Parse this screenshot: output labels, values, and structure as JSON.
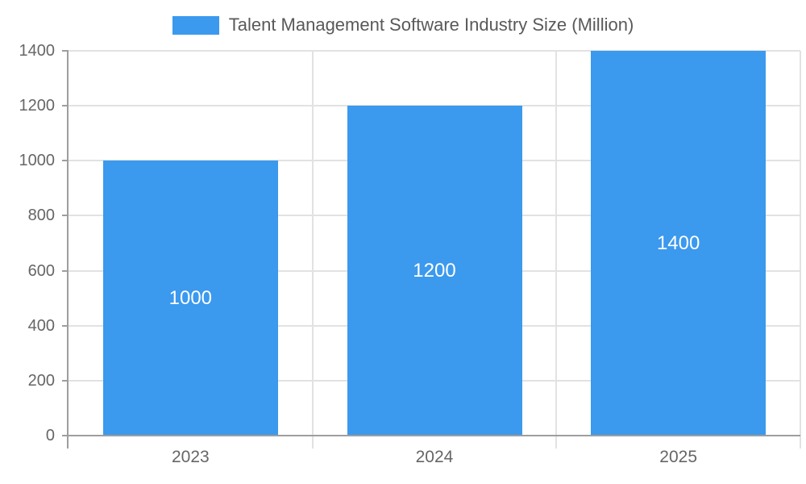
{
  "legend": {
    "label": "Talent Management Software Industry Size (Million)"
  },
  "chart_data": {
    "type": "bar",
    "title": "Talent Management Software Industry Size (Million)",
    "categories": [
      "2023",
      "2024",
      "2025"
    ],
    "values": [
      1000,
      1200,
      1400
    ],
    "xlabel": "",
    "ylabel": "",
    "ylim": [
      0,
      1400
    ],
    "yticks": [
      0,
      200,
      400,
      600,
      800,
      1000,
      1200,
      1400
    ],
    "grid": true,
    "legend_position": "top",
    "data_label_position": "inside-center"
  },
  "colors": {
    "bar": "#3B99EE",
    "grid_line": "#E2E2E2",
    "axis_line": "#9E9E9E",
    "tick_label": "#666666",
    "legend_text": "#595959",
    "data_label": "#FFFFFF",
    "background": "#FFFFFF"
  }
}
